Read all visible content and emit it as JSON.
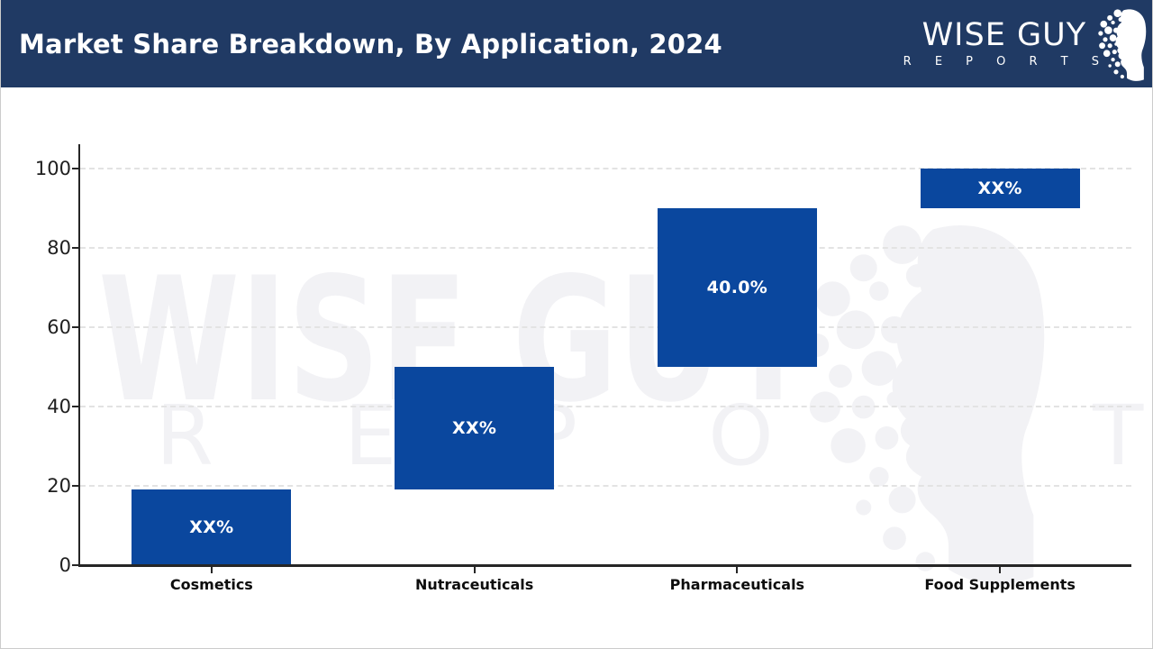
{
  "header": {
    "title": "Market Share Breakdown, By Application, 2024",
    "logo": {
      "main": "WISE GUY",
      "sub": "R E P O R T S",
      "face_icon": "wise-guy-head-icon"
    }
  },
  "watermark": {
    "main": "WISE GUY",
    "sub": "R E P O R T S"
  },
  "chart_data": {
    "type": "bar",
    "subtype": "stacked-waterfall-segments",
    "title": "Market Share Breakdown, By Application, 2024",
    "xlabel": "",
    "ylabel": "",
    "categories": [
      "Cosmetics",
      "Nutraceuticals",
      "Pharmaceuticals",
      "Food Supplements"
    ],
    "series": [
      {
        "category": "Cosmetics",
        "segment_start": 0,
        "segment_end": 19,
        "value_label": "XX%"
      },
      {
        "category": "Nutraceuticals",
        "segment_start": 19,
        "segment_end": 50,
        "value_label": "XX%"
      },
      {
        "category": "Pharmaceuticals",
        "segment_start": 50,
        "segment_end": 90,
        "value_label": "40.0%"
      },
      {
        "category": "Food Supplements",
        "segment_start": 90,
        "segment_end": 100,
        "value_label": "XX%"
      }
    ],
    "yticks": [
      "0",
      "20",
      "40",
      "60",
      "80",
      "100"
    ],
    "ylim": [
      0,
      106
    ],
    "grid": {
      "horizontal": true,
      "style": "dashed"
    },
    "legend": "none",
    "bar_color": "#0a479e",
    "bar_label_color": "#ffffff"
  },
  "colors": {
    "header_bg": "#203a64",
    "bar": "#0a479e",
    "grid": "#e3e3e3",
    "axis": "#262626",
    "watermark": "#f2f2f5",
    "page_border": "#cccccc"
  }
}
